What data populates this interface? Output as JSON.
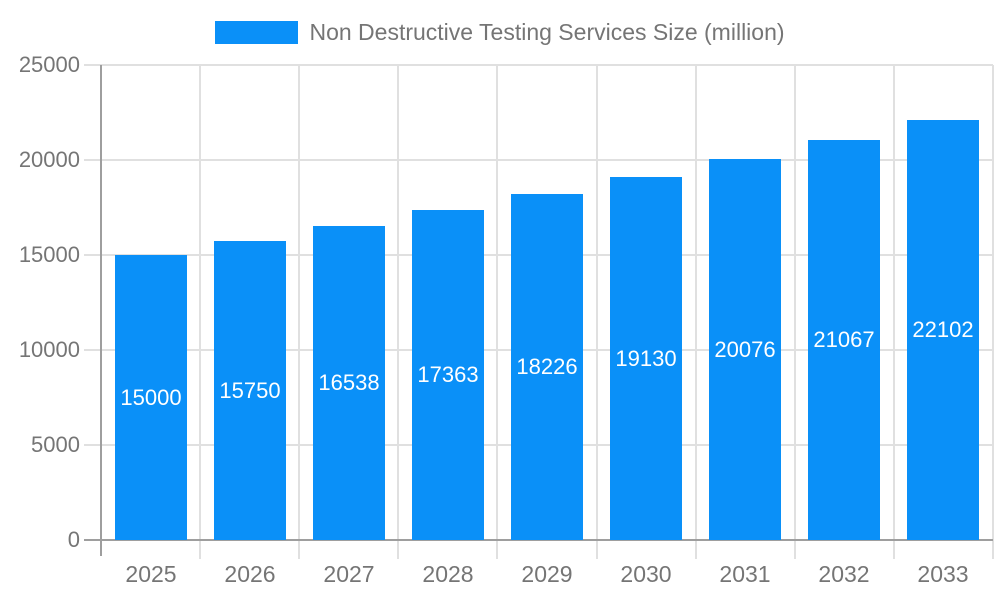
{
  "chart_data": {
    "type": "bar",
    "title": "",
    "legend_label": "Non Destructive Testing Services Size (million)",
    "legend_position": "top-center",
    "categories": [
      "2025",
      "2026",
      "2027",
      "2028",
      "2029",
      "2030",
      "2031",
      "2032",
      "2033"
    ],
    "series": [
      {
        "name": "Non Destructive Testing Services Size (million)",
        "values": [
          15000,
          15750,
          16538,
          17363,
          18226,
          19130,
          20076,
          21067,
          22102
        ]
      }
    ],
    "data_labels": {
      "visible": true,
      "position": "inside-center",
      "texts": [
        "15000",
        "15750",
        "16538",
        "17363",
        "18226",
        "19130",
        "20076",
        "21067",
        "22102"
      ]
    },
    "xlabel": "",
    "ylabel": "",
    "ylim": [
      0,
      25000
    ],
    "yticks": [
      0,
      5000,
      10000,
      15000,
      20000,
      25000
    ],
    "ytick_labels": [
      "0",
      "5000",
      "10000",
      "15000",
      "20000",
      "25000"
    ],
    "grid": true,
    "colors": {
      "bar": "#0a90f8",
      "bar_label_text": "#ffffff",
      "axis_text": "#757575",
      "legend_text": "#757575",
      "gridline": "#e0e0e0",
      "axis_line": "#9e9e9e",
      "background": "#ffffff"
    }
  }
}
